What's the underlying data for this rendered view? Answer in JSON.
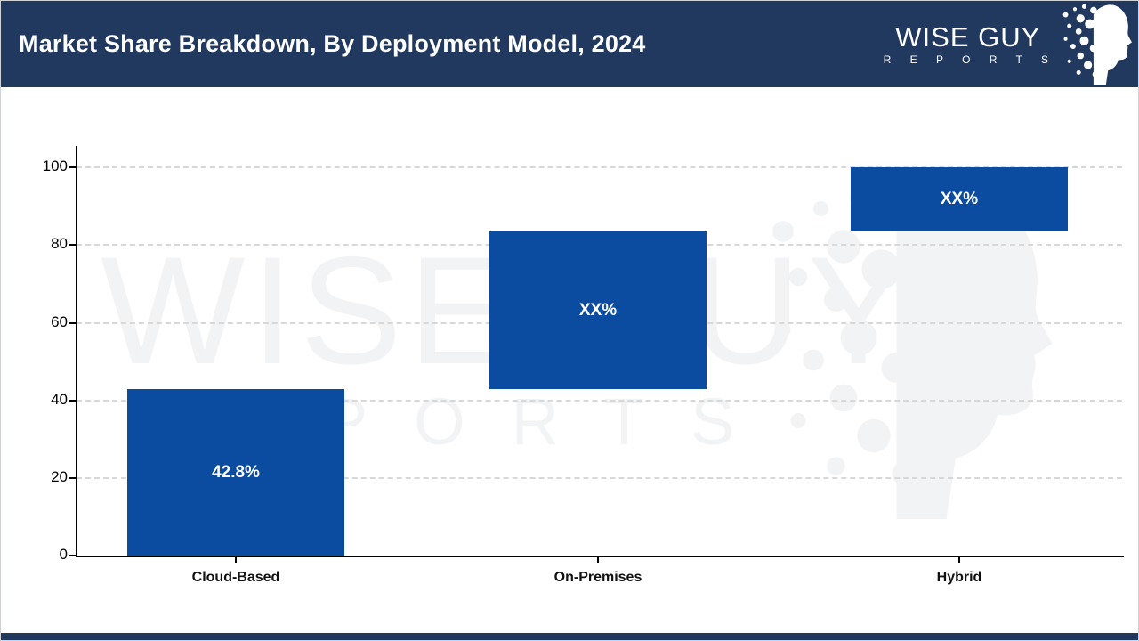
{
  "header": {
    "title": "Market Share Breakdown, By Deployment Model, 2024",
    "logo": {
      "brand_top": "WISE GUY",
      "brand_bottom": "R E P O R T S"
    }
  },
  "watermark": {
    "line1": "WISE GUY",
    "line2": "REPORTS"
  },
  "chart_data": {
    "type": "bar",
    "subtype": "segmented-waterfall",
    "title": "Market Share Breakdown, By Deployment Model, 2024",
    "categories": [
      "Cloud-Based",
      "On-Premises",
      "Hybrid"
    ],
    "segments": [
      {
        "category": "Cloud-Based",
        "start": 0,
        "end": 42.8,
        "value": 42.8,
        "label": "42.8%"
      },
      {
        "category": "On-Premises",
        "start": 42.8,
        "end": 83.5,
        "value": 40.7,
        "label": "XX%"
      },
      {
        "category": "Hybrid",
        "start": 83.5,
        "end": 100,
        "value": 16.5,
        "label": "XX%"
      }
    ],
    "y_ticks": [
      0,
      20,
      40,
      60,
      80,
      100
    ],
    "ylim": [
      0,
      100
    ],
    "xlabel": "",
    "ylabel": "",
    "grid": "horizontal-dashed",
    "legend": "none",
    "bar_color": "#0b4ca0",
    "label_color": "#ffffff"
  },
  "colors": {
    "header_bg": "#22395f",
    "footer_bg": "#22395f",
    "bar": "#0b4ca0",
    "gridline": "#d8d8d8",
    "axis": "#000000",
    "watermark": "#f2f3f5",
    "title_text": "#ffffff"
  }
}
